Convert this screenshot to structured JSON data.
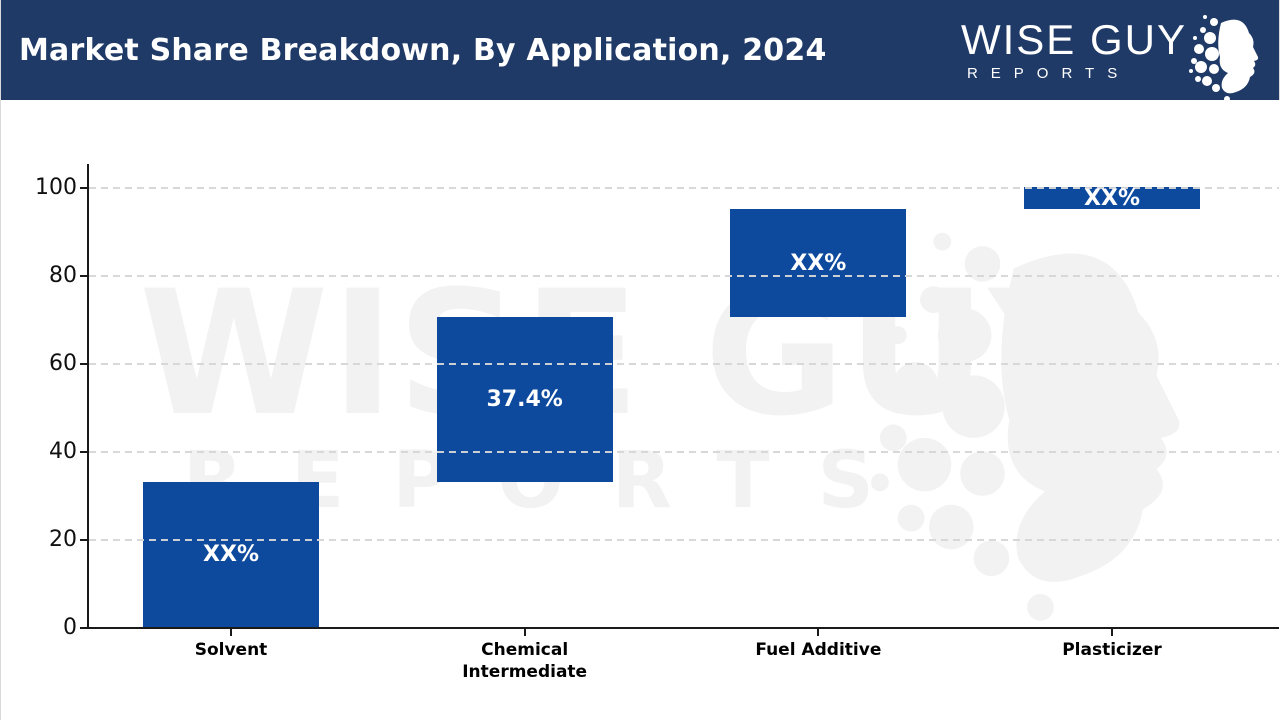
{
  "header": {
    "title": "Market Share Breakdown, By Application, 2024",
    "logo": {
      "primary": "WISE GUY",
      "secondary": "REPORTS"
    }
  },
  "watermark": {
    "primary": "WISE GUY",
    "secondary": "REPORTS"
  },
  "colors": {
    "header_bg": "#203a68",
    "bar": "#0d4a9e",
    "bar_label": "#ffffff",
    "axis": "#1a1a1a",
    "grid": "#d6d6d6",
    "watermark": "#f2f2f2",
    "page_border": "#d9d9d9"
  },
  "chart_data": {
    "type": "bar",
    "variant": "waterfall-stacked-percentage",
    "title": "Market Share Breakdown, By Application, 2024",
    "categories": [
      "Solvent",
      "Chemical Intermediate",
      "Fuel Additive",
      "Plasticizer"
    ],
    "tick_labels": [
      "Solvent",
      "Chemical\nIntermediate",
      "Fuel Additive",
      "Plasticizer"
    ],
    "segments": [
      {
        "category": "Solvent",
        "start": 0,
        "end": 33,
        "value_label": "XX%"
      },
      {
        "category": "Chemical Intermediate",
        "start": 33,
        "end": 70.4,
        "value_label": "37.4%"
      },
      {
        "category": "Fuel Additive",
        "start": 70.4,
        "end": 95,
        "value_label": "XX%"
      },
      {
        "category": "Plasticizer",
        "start": 95,
        "end": 100,
        "value_label": "XX%"
      }
    ],
    "values": [
      33,
      37.4,
      24.6,
      5
    ],
    "xlabel": "",
    "ylabel": "",
    "ylim": [
      0,
      100
    ],
    "yticks": [
      0,
      20,
      40,
      60,
      80,
      100
    ],
    "grid": {
      "horizontal": true,
      "style": "dashed",
      "drawn_over_bars": true
    },
    "legend": null,
    "bar_color": "#0d4a9e"
  }
}
